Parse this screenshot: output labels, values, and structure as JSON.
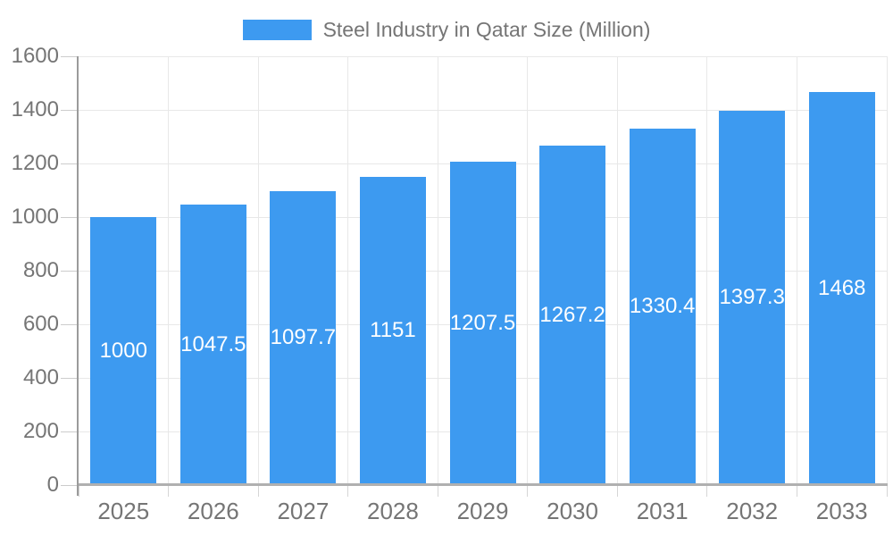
{
  "chart_data": {
    "type": "bar",
    "legend_label": "Steel Industry in Qatar Size (Million)",
    "categories": [
      "2025",
      "2026",
      "2027",
      "2028",
      "2029",
      "2030",
      "2031",
      "2032",
      "2033"
    ],
    "values": [
      1000,
      1047.5,
      1097.7,
      1151,
      1207.5,
      1267.2,
      1330.4,
      1397.3,
      1468
    ],
    "bar_labels": [
      "1000",
      "1047.5",
      "1097.7",
      "1151",
      "1207.5",
      "1267.2",
      "1330.4",
      "1397.3",
      "1468"
    ],
    "xlabel": "",
    "ylabel": "",
    "ylim": [
      0,
      1600
    ],
    "ytick_step": 200,
    "yticks": [
      0,
      200,
      400,
      600,
      800,
      1000,
      1200,
      1400,
      1600
    ],
    "grid": true,
    "legend_position": "top-center",
    "bar_label_position": "inside-center",
    "colors": {
      "bar": "#3d9af0",
      "bar_label_text": "#ffffff",
      "axis_y_line": "#9b9b9b",
      "axis_x_line": "#b0b0b0",
      "gridline": "#e8e8e8",
      "y_tick": "#cccccc",
      "x_tick": "#d6d6d6",
      "label_text": "#757575",
      "background": "#ffffff"
    }
  }
}
